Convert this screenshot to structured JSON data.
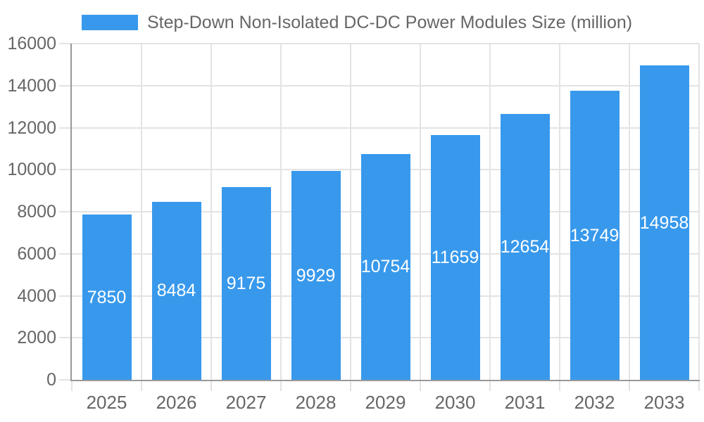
{
  "legend": {
    "label": "Step-Down Non-Isolated DC-DC Power Modules Size (million)"
  },
  "chart_data": {
    "type": "bar",
    "title": "Step-Down Non-Isolated DC-DC Power Modules Size (million)",
    "categories": [
      "2025",
      "2026",
      "2027",
      "2028",
      "2029",
      "2030",
      "2031",
      "2032",
      "2033"
    ],
    "values": [
      7850,
      8484,
      9175,
      9929,
      10754,
      11659,
      12654,
      13749,
      14958
    ],
    "xlabel": "",
    "ylabel": "",
    "ylim": [
      0,
      16000
    ],
    "yticks": [
      0,
      2000,
      4000,
      6000,
      8000,
      10000,
      12000,
      14000,
      16000
    ],
    "grid": true,
    "legend_position": "top",
    "value_labels": "inside-center"
  },
  "colors": {
    "bar": "#3899EC",
    "grid": "#E3E3E3",
    "axis": "#999999",
    "text": "#666666",
    "value_label": "#FFFFFF",
    "background": "#FFFFFF"
  }
}
